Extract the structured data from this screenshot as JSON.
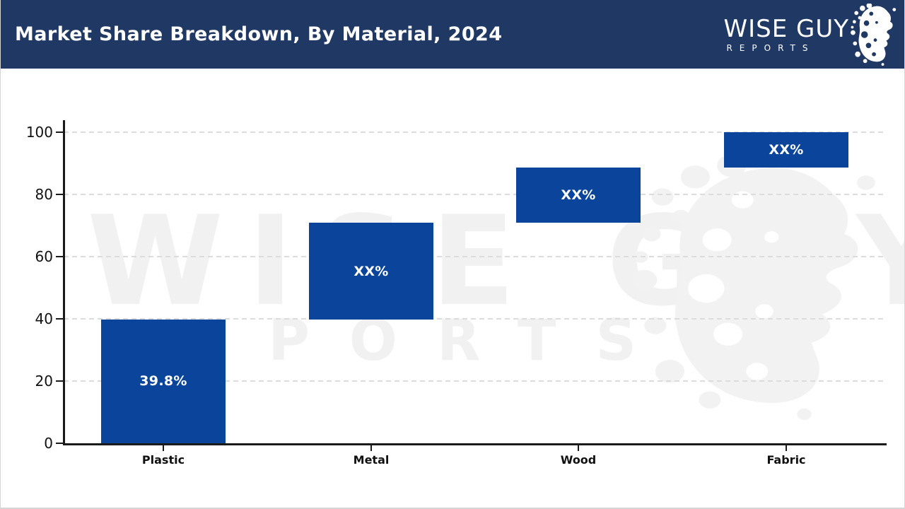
{
  "header": {
    "title": "Market Share Breakdown, By Material, 2024",
    "bg_color": "#1f3864",
    "logo": {
      "line1": "WISE GUY",
      "line2": "REPORTS"
    }
  },
  "watermark": {
    "line1": "WISE GUY",
    "line2": "REPORTS"
  },
  "chart_data": {
    "type": "bar",
    "subtype": "waterfall",
    "title": "Market Share Breakdown, By Material, 2024",
    "categories": [
      "Plastic",
      "Metal",
      "Wood",
      "Fabric"
    ],
    "segments": [
      {
        "category": "Plastic",
        "start": 0,
        "end": 39.8,
        "label": "39.8%"
      },
      {
        "category": "Metal",
        "start": 39.8,
        "end": 70.8,
        "label": "XX%"
      },
      {
        "category": "Wood",
        "start": 70.8,
        "end": 88.6,
        "label": "XX%"
      },
      {
        "category": "Fabric",
        "start": 88.6,
        "end": 100,
        "label": "XX%"
      }
    ],
    "xlabel": "",
    "ylabel": "",
    "y_ticks": [
      0,
      20,
      40,
      60,
      80,
      100
    ],
    "ylim": [
      0,
      104
    ],
    "grid": "horizontal-dashed",
    "bar_color": "#0a449b",
    "value_label_color": "#ffffff"
  }
}
